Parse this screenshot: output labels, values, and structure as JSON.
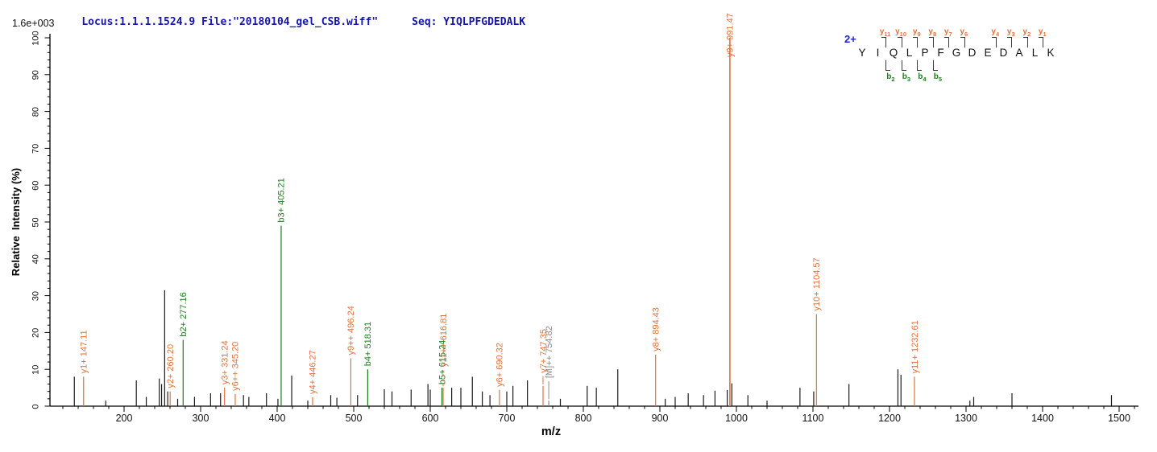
{
  "header": {
    "locus_file": "Locus:1.1.1.1524.9 File:\"20180104_gel_CSB.wiff\"",
    "seq_label": "Seq: YIQLPFGDEDALK",
    "intensity_scale": "1.6e+003"
  },
  "colors": {
    "header_blue": "#1616ad",
    "charge_blue": "#2222cc",
    "y_ion_orange": "#e0713a",
    "b_ion_green": "#1b7d1b",
    "precursor_gray": "#8a8a8a",
    "peak_black": "#1a1a1a",
    "axis_black": "#000000"
  },
  "chart_data": {
    "type": "bar",
    "subtype": "MS/MS fragmentation mass spectrum",
    "title": "",
    "xlabel": "m/z",
    "ylabel": "Relative  Intensity (%)",
    "xlim": [
      105,
      1525
    ],
    "ylim": [
      0,
      100
    ],
    "x_major_ticks": [
      200,
      300,
      400,
      500,
      600,
      700,
      800,
      900,
      1000,
      1100,
      1200,
      1300,
      1400,
      1500
    ],
    "x_minor_step": 20,
    "y_major_ticks": [
      0,
      10,
      20,
      30,
      40,
      50,
      60,
      70,
      80,
      90,
      100
    ],
    "y_minor_step": 2,
    "grid": false,
    "labeled_peaks": [
      {
        "label": "y1+ 147.11",
        "mz": 147.11,
        "pct": 8,
        "ion": "y"
      },
      {
        "label": "y2+ 260.20",
        "mz": 260.2,
        "pct": 4,
        "ion": "y"
      },
      {
        "label": "b2+ 277.16",
        "mz": 277.16,
        "pct": 18,
        "ion": "b"
      },
      {
        "label": "y3+ 331.24",
        "mz": 331.24,
        "pct": 5,
        "ion": "y"
      },
      {
        "label": "y6++ 345.20",
        "mz": 345.2,
        "pct": 3.3,
        "ion": "y"
      },
      {
        "label": "b3+ 405.21",
        "mz": 405.21,
        "pct": 49,
        "ion": "b"
      },
      {
        "label": "y4+ 446.27",
        "mz": 446.27,
        "pct": 2.4,
        "ion": "y"
      },
      {
        "label": "y9++ 496.24",
        "mz": 496.24,
        "pct": 13,
        "ion": "y"
      },
      {
        "label": "b4+ 518.31",
        "mz": 518.31,
        "pct": 10,
        "ion": "b"
      },
      {
        "label": "b5+ 615.24",
        "mz": 615.24,
        "pct": 5,
        "ion": "b"
      },
      {
        "label": "y11++ 616.81",
        "mz": 616.81,
        "pct": 5,
        "ion": "y",
        "offset": 22,
        "leader": "dashed"
      },
      {
        "label": "y6+ 690.32",
        "mz": 690.32,
        "pct": 4.4,
        "ion": "y"
      },
      {
        "label": "y7+ 747.35",
        "mz": 747.35,
        "pct": 5.5,
        "ion": "y",
        "offset": 12,
        "leader": "solid"
      },
      {
        "label": "[M]++ 754.82",
        "mz": 754.82,
        "pct": 1.5,
        "ion": "precursor",
        "offset": 24,
        "leader": "solid"
      },
      {
        "label": "y8+ 894.43",
        "mz": 894.43,
        "pct": 14,
        "ion": "y"
      },
      {
        "label": "y9+ 991.47",
        "mz": 991.47,
        "pct": 100,
        "ion": "y"
      },
      {
        "label": "y10+ 1104.57",
        "mz": 1104.57,
        "pct": 25,
        "ion": "y"
      },
      {
        "label": "y11+ 1232.61",
        "mz": 1232.61,
        "pct": 8,
        "ion": "y"
      }
    ],
    "unlabeled_peaks": [
      [
        135,
        8
      ],
      [
        176,
        1.5
      ],
      [
        216,
        7
      ],
      [
        229,
        2.5
      ],
      [
        246,
        7.5
      ],
      [
        249,
        6
      ],
      [
        253,
        31.5
      ],
      [
        257,
        4
      ],
      [
        270,
        2
      ],
      [
        292,
        2.5
      ],
      [
        313,
        3.5
      ],
      [
        326,
        3.5
      ],
      [
        356,
        3
      ],
      [
        363,
        2.5
      ],
      [
        386,
        3.5
      ],
      [
        401,
        2
      ],
      [
        419,
        8.3
      ],
      [
        440,
        1.5
      ],
      [
        470,
        3
      ],
      [
        478,
        2.3
      ],
      [
        505,
        3
      ],
      [
        540,
        4.6
      ],
      [
        550,
        4
      ],
      [
        575,
        4.5
      ],
      [
        597,
        6
      ],
      [
        600,
        4.5
      ],
      [
        628,
        5
      ],
      [
        640,
        5
      ],
      [
        655,
        8
      ],
      [
        668,
        4
      ],
      [
        678,
        3
      ],
      [
        700,
        4
      ],
      [
        708,
        5.5
      ],
      [
        727,
        7
      ],
      [
        770,
        2
      ],
      [
        805,
        5.5
      ],
      [
        817,
        5
      ],
      [
        845,
        10
      ],
      [
        907,
        2
      ],
      [
        920,
        2.5
      ],
      [
        937,
        3.5
      ],
      [
        957,
        3
      ],
      [
        972,
        4.2
      ],
      [
        988,
        4.4
      ],
      [
        994,
        6.2
      ],
      [
        1015,
        3
      ],
      [
        1040,
        1.5
      ],
      [
        1083,
        5
      ],
      [
        1101,
        4
      ],
      [
        1147,
        6
      ],
      [
        1211,
        10
      ],
      [
        1215,
        8.5
      ],
      [
        1305,
        1.5
      ],
      [
        1310,
        2.5
      ],
      [
        1360,
        3.5
      ],
      [
        1490,
        3
      ]
    ]
  },
  "peptide_annotation": {
    "charge": "2+",
    "residues": [
      "Y",
      "I",
      "Q",
      "L",
      "P",
      "F",
      "G",
      "D",
      "E",
      "D",
      "A",
      "L",
      "K"
    ],
    "y_ions": [
      {
        "n": "11",
        "gap": 2
      },
      {
        "n": "10",
        "gap": 3
      },
      {
        "n": "9",
        "gap": 4
      },
      {
        "n": "8",
        "gap": 5
      },
      {
        "n": "7",
        "gap": 6
      },
      {
        "n": "6",
        "gap": 7
      },
      {
        "n": "4",
        "gap": 9
      },
      {
        "n": "3",
        "gap": 10
      },
      {
        "n": "2",
        "gap": 11
      },
      {
        "n": "1",
        "gap": 12
      }
    ],
    "b_ions": [
      {
        "n": "2",
        "gap": 2
      },
      {
        "n": "3",
        "gap": 3
      },
      {
        "n": "4",
        "gap": 4
      },
      {
        "n": "5",
        "gap": 5
      }
    ]
  }
}
